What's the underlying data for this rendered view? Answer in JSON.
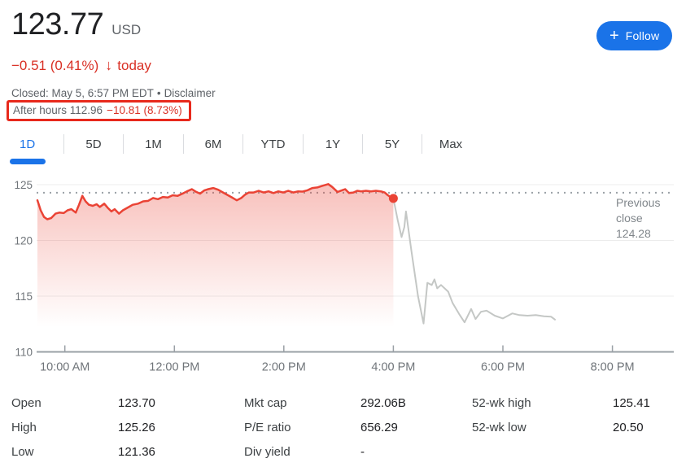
{
  "header": {
    "price": "123.77",
    "currency": "USD",
    "change": "−0.51 (0.41%)",
    "change_arrow": "↓",
    "change_suffix": "today",
    "status_closed": "Closed: May 5, 6:57 PM EDT",
    "bullet": "•",
    "disclaimer": "Disclaimer",
    "after_hours_prefix": "After hours 112.96",
    "after_hours_change": "−10.81 (8.73%)",
    "follow_button": {
      "icon": "+",
      "label": "Follow"
    }
  },
  "tabs": [
    {
      "label": "1D",
      "active": true
    },
    {
      "label": "5D",
      "active": false
    },
    {
      "label": "1M",
      "active": false
    },
    {
      "label": "6M",
      "active": false
    },
    {
      "label": "YTD",
      "active": false
    },
    {
      "label": "1Y",
      "active": false
    },
    {
      "label": "5Y",
      "active": false
    },
    {
      "label": "Max",
      "active": false
    }
  ],
  "chart_data": {
    "type": "line",
    "title": "1-day stock price with after-hours drop",
    "x_axis": {
      "tick_labels": [
        "10:00 AM",
        "12:00 PM",
        "2:00 PM",
        "4:00 PM",
        "6:00 PM",
        "8:00 PM"
      ],
      "tick_hours": [
        10,
        12,
        14,
        16,
        18,
        20
      ],
      "range_hours": [
        9.5,
        21.1
      ]
    },
    "y_axis": {
      "tick_labels": [
        "110",
        "115",
        "120",
        "125"
      ],
      "ticks": [
        110,
        115,
        120,
        125
      ],
      "range": [
        110,
        126.5
      ]
    },
    "previous_close": {
      "label": "Previous close 124.28",
      "value": 124.28
    },
    "end_dot": {
      "hour": 16.0,
      "price": 123.77
    },
    "series": [
      {
        "name": "regular-hours",
        "color": "#ea4335",
        "fill": true,
        "points": [
          [
            9.5,
            123.6
          ],
          [
            9.56,
            122.7
          ],
          [
            9.62,
            122.1
          ],
          [
            9.68,
            121.9
          ],
          [
            9.75,
            122.0
          ],
          [
            9.83,
            122.4
          ],
          [
            9.9,
            122.5
          ],
          [
            9.98,
            122.45
          ],
          [
            10.05,
            122.7
          ],
          [
            10.12,
            122.8
          ],
          [
            10.2,
            122.5
          ],
          [
            10.26,
            123.2
          ],
          [
            10.32,
            124.0
          ],
          [
            10.38,
            123.5
          ],
          [
            10.44,
            123.2
          ],
          [
            10.51,
            123.1
          ],
          [
            10.58,
            123.25
          ],
          [
            10.64,
            123.0
          ],
          [
            10.72,
            123.3
          ],
          [
            10.78,
            122.95
          ],
          [
            10.85,
            122.6
          ],
          [
            10.91,
            122.8
          ],
          [
            10.99,
            122.4
          ],
          [
            11.06,
            122.7
          ],
          [
            11.15,
            122.95
          ],
          [
            11.24,
            123.2
          ],
          [
            11.34,
            123.3
          ],
          [
            11.43,
            123.5
          ],
          [
            11.52,
            123.55
          ],
          [
            11.61,
            123.8
          ],
          [
            11.7,
            123.7
          ],
          [
            11.79,
            123.9
          ],
          [
            11.88,
            123.85
          ],
          [
            11.97,
            124.05
          ],
          [
            12.06,
            124.0
          ],
          [
            12.15,
            124.2
          ],
          [
            12.23,
            124.4
          ],
          [
            12.32,
            124.6
          ],
          [
            12.4,
            124.35
          ],
          [
            12.47,
            124.2
          ],
          [
            12.55,
            124.5
          ],
          [
            12.62,
            124.6
          ],
          [
            12.71,
            124.7
          ],
          [
            12.8,
            124.55
          ],
          [
            12.89,
            124.3
          ],
          [
            12.98,
            124.05
          ],
          [
            13.07,
            123.8
          ],
          [
            13.14,
            123.6
          ],
          [
            13.22,
            123.8
          ],
          [
            13.29,
            124.1
          ],
          [
            13.36,
            124.3
          ],
          [
            13.45,
            124.3
          ],
          [
            13.54,
            124.45
          ],
          [
            13.63,
            124.3
          ],
          [
            13.72,
            124.4
          ],
          [
            13.81,
            124.25
          ],
          [
            13.9,
            124.4
          ],
          [
            13.99,
            124.3
          ],
          [
            14.08,
            124.45
          ],
          [
            14.17,
            124.3
          ],
          [
            14.26,
            124.4
          ],
          [
            14.34,
            124.38
          ],
          [
            14.43,
            124.5
          ],
          [
            14.52,
            124.7
          ],
          [
            14.61,
            124.75
          ],
          [
            14.7,
            124.9
          ],
          [
            14.81,
            125.05
          ],
          [
            14.88,
            124.8
          ],
          [
            14.98,
            124.35
          ],
          [
            15.06,
            124.5
          ],
          [
            15.12,
            124.6
          ],
          [
            15.19,
            124.25
          ],
          [
            15.27,
            124.3
          ],
          [
            15.34,
            124.45
          ],
          [
            15.41,
            124.4
          ],
          [
            15.5,
            124.45
          ],
          [
            15.59,
            124.4
          ],
          [
            15.68,
            124.45
          ],
          [
            15.77,
            124.4
          ],
          [
            15.84,
            124.3
          ],
          [
            15.9,
            124.05
          ],
          [
            15.96,
            123.85
          ],
          [
            16.0,
            123.77
          ]
        ]
      },
      {
        "name": "after-hours",
        "color": "#c4c7c5",
        "fill": false,
        "points": [
          [
            16.0,
            123.77
          ],
          [
            16.08,
            121.8
          ],
          [
            16.15,
            120.3
          ],
          [
            16.2,
            121.2
          ],
          [
            16.23,
            122.6
          ],
          [
            16.33,
            119.0
          ],
          [
            16.45,
            115.0
          ],
          [
            16.55,
            112.55
          ],
          [
            16.62,
            116.2
          ],
          [
            16.7,
            116.0
          ],
          [
            16.75,
            116.5
          ],
          [
            16.8,
            115.7
          ],
          [
            16.87,
            116.0
          ],
          [
            17.0,
            115.4
          ],
          [
            17.08,
            114.4
          ],
          [
            17.2,
            113.4
          ],
          [
            17.3,
            112.65
          ],
          [
            17.42,
            113.85
          ],
          [
            17.5,
            112.95
          ],
          [
            17.6,
            113.6
          ],
          [
            17.7,
            113.7
          ],
          [
            17.85,
            113.25
          ],
          [
            18.0,
            113.0
          ],
          [
            18.17,
            113.45
          ],
          [
            18.3,
            113.3
          ],
          [
            18.45,
            113.25
          ],
          [
            18.6,
            113.3
          ],
          [
            18.75,
            113.2
          ],
          [
            18.88,
            113.15
          ],
          [
            18.95,
            112.9
          ]
        ]
      }
    ],
    "grid": true,
    "legend": "none"
  },
  "stats": {
    "columns": [
      [
        {
          "label": "Open",
          "value": "123.70"
        },
        {
          "label": "High",
          "value": "125.26"
        },
        {
          "label": "Low",
          "value": "121.36"
        }
      ],
      [
        {
          "label": "Mkt cap",
          "value": "292.06B"
        },
        {
          "label": "P/E ratio",
          "value": "656.29"
        },
        {
          "label": "Div yield",
          "value": "-"
        }
      ],
      [
        {
          "label": "52-wk high",
          "value": "125.41"
        },
        {
          "label": "52-wk low",
          "value": "20.50"
        }
      ]
    ]
  },
  "colors": {
    "accent_blue": "#1a73e8",
    "chart_red": "#ea4335",
    "text_red": "#d93025",
    "annotation_red": "#e8291c",
    "after_hours_gray": "#c4c7c5",
    "axis_gray": "#9aa0a6",
    "label_gray": "#70757a",
    "grid_gray": "#ececec"
  }
}
